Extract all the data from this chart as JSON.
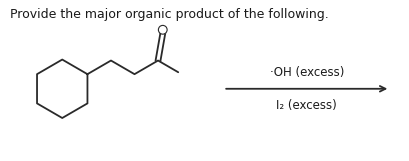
{
  "title": "Provide the major organic product of the following.",
  "title_fontsize": 9.0,
  "reagent_line1": "·OH (excess)",
  "reagent_line2": "I₂ (excess)",
  "reagent_fontsize": 8.5,
  "background_color": "#ffffff",
  "text_color": "#1a1a1a",
  "line_color": "#2a2a2a",
  "fig_width": 4.09,
  "fig_height": 1.61,
  "dpi": 100
}
